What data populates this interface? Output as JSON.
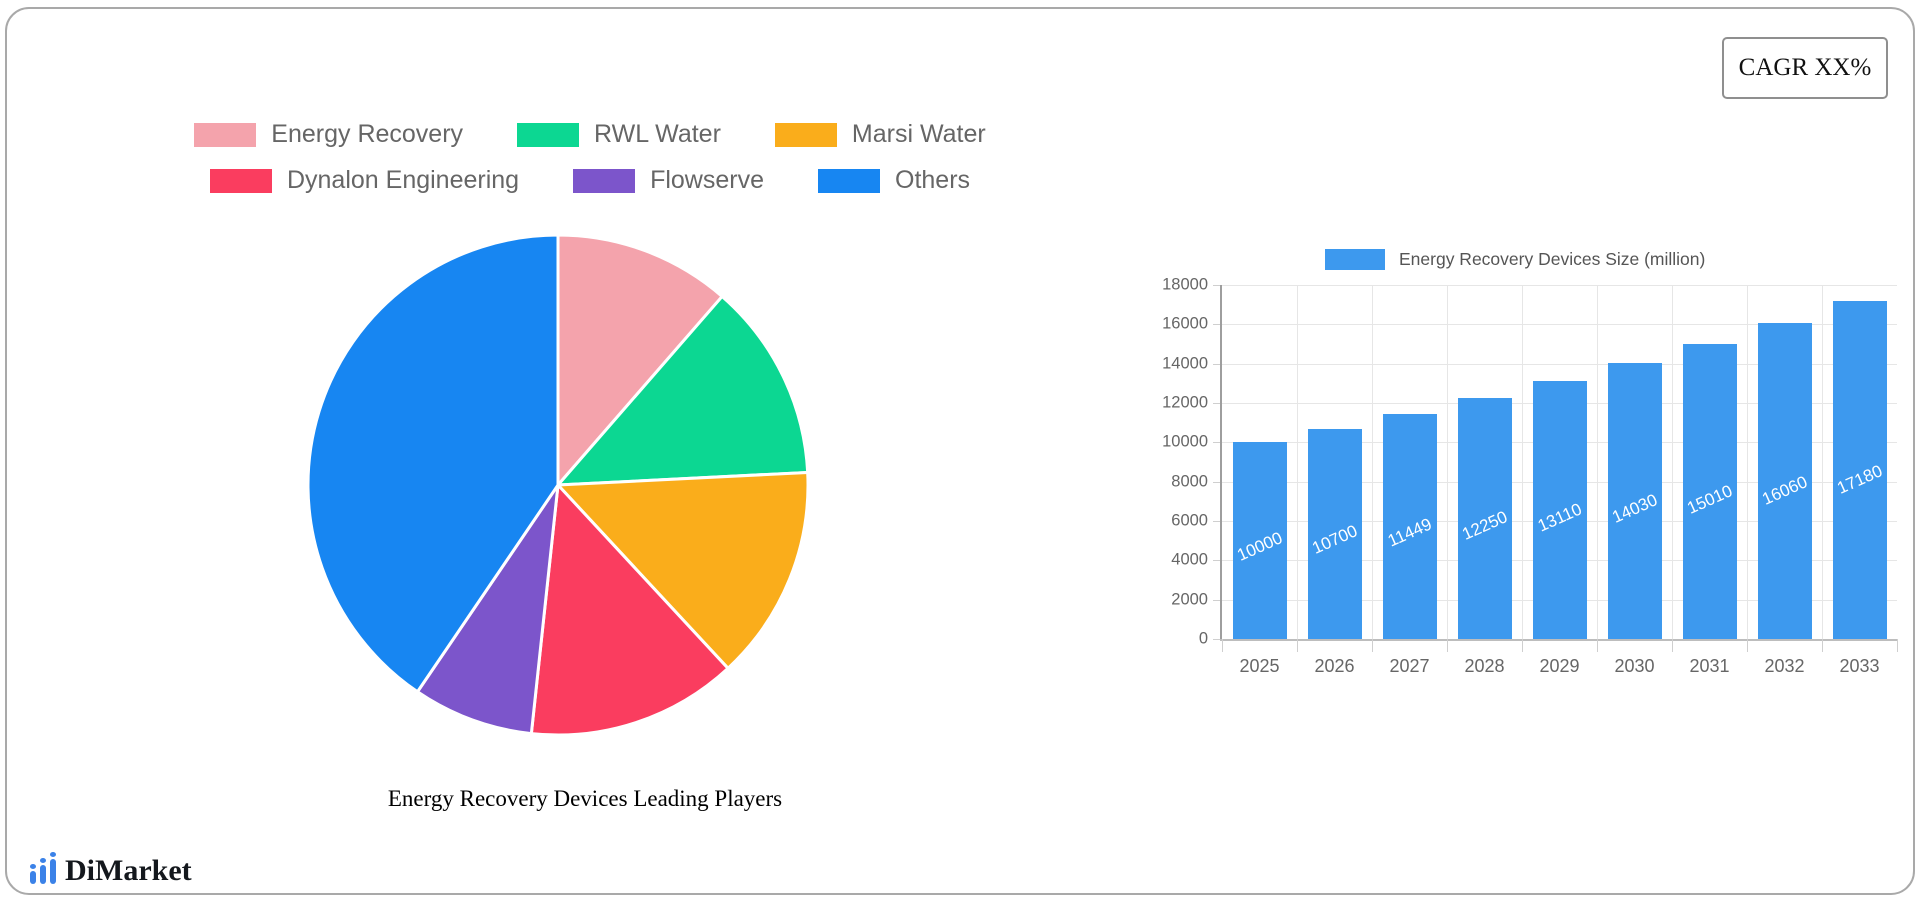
{
  "cagr": {
    "label": "CAGR XX%"
  },
  "logo": {
    "name": "DiMarket"
  },
  "chart_data": [
    {
      "type": "pie",
      "title": "Energy Recovery Devices Leading Players",
      "labels": [
        "Energy Recovery",
        "RWL Water",
        "Marsi Water",
        "Dynalon Engineering",
        "Flowserve",
        "Others"
      ],
      "values": [
        11.4,
        12.8,
        13.9,
        13.6,
        7.8,
        40.5
      ],
      "colors": [
        "#F4A3AC",
        "#0CD792",
        "#FAAD1B",
        "#FA3D5F",
        "#7C55CB",
        "#1786F2"
      ],
      "legend_position": "top",
      "legend_rows": [
        3,
        3
      ],
      "start_angle_deg": 0,
      "direction": "clockwise",
      "slice_border_color": "#FFFFFF"
    },
    {
      "type": "bar",
      "categories": [
        "2025",
        "2026",
        "2027",
        "2028",
        "2029",
        "2030",
        "2031",
        "2032",
        "2033"
      ],
      "series": [
        {
          "name": "Energy Recovery Devices Size (million)",
          "values": [
            10000,
            10700,
            11449,
            12250,
            13110,
            14030,
            15010,
            16060,
            17180
          ]
        }
      ],
      "bar_color": "#3D99EE",
      "value_label_color": "#FFFFFF",
      "ylim": [
        0,
        18000
      ],
      "ytick_step": 2000,
      "grid": true,
      "legend_position": "top"
    }
  ]
}
